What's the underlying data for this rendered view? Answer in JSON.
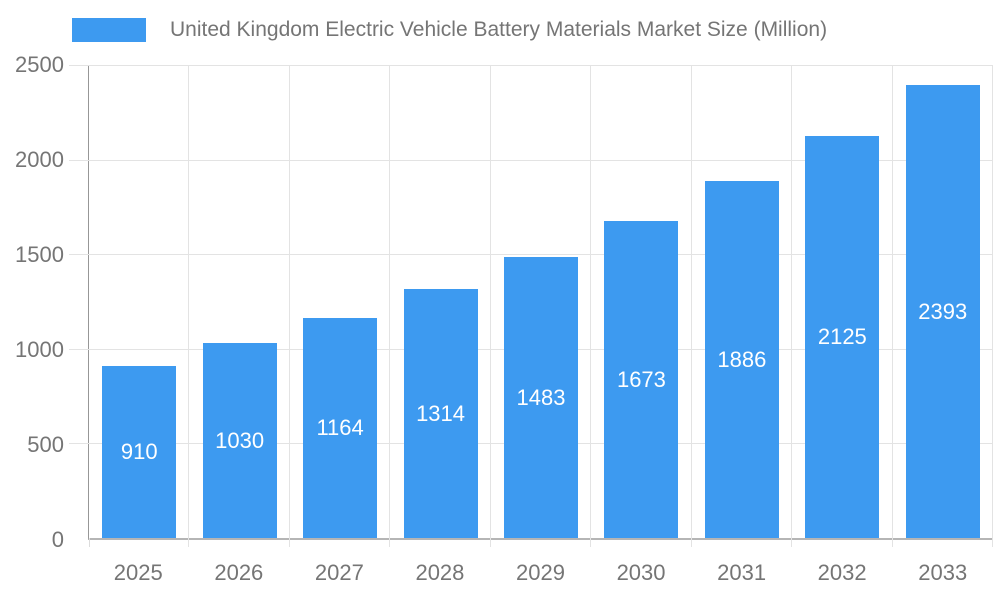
{
  "chart_data": {
    "type": "bar",
    "title": "United Kingdom Electric Vehicle Battery Materials Market Size (Million)",
    "categories": [
      "2025",
      "2026",
      "2027",
      "2028",
      "2029",
      "2030",
      "2031",
      "2032",
      "2033"
    ],
    "values": [
      910,
      1030,
      1164,
      1314,
      1483,
      1673,
      1886,
      2125,
      2393
    ],
    "xlabel": "",
    "ylabel": "",
    "ylim": [
      0,
      2500
    ],
    "yticks": [
      0,
      500,
      1000,
      1500,
      2000,
      2500
    ],
    "grid": true,
    "legend_position": "top-left",
    "bar_color": "#3d9af0",
    "value_label_color": "#ffffff",
    "axis_text_color": "#757575",
    "gridline_color": "#e3e3e3",
    "axis_line_color": "#b5b5b5"
  }
}
